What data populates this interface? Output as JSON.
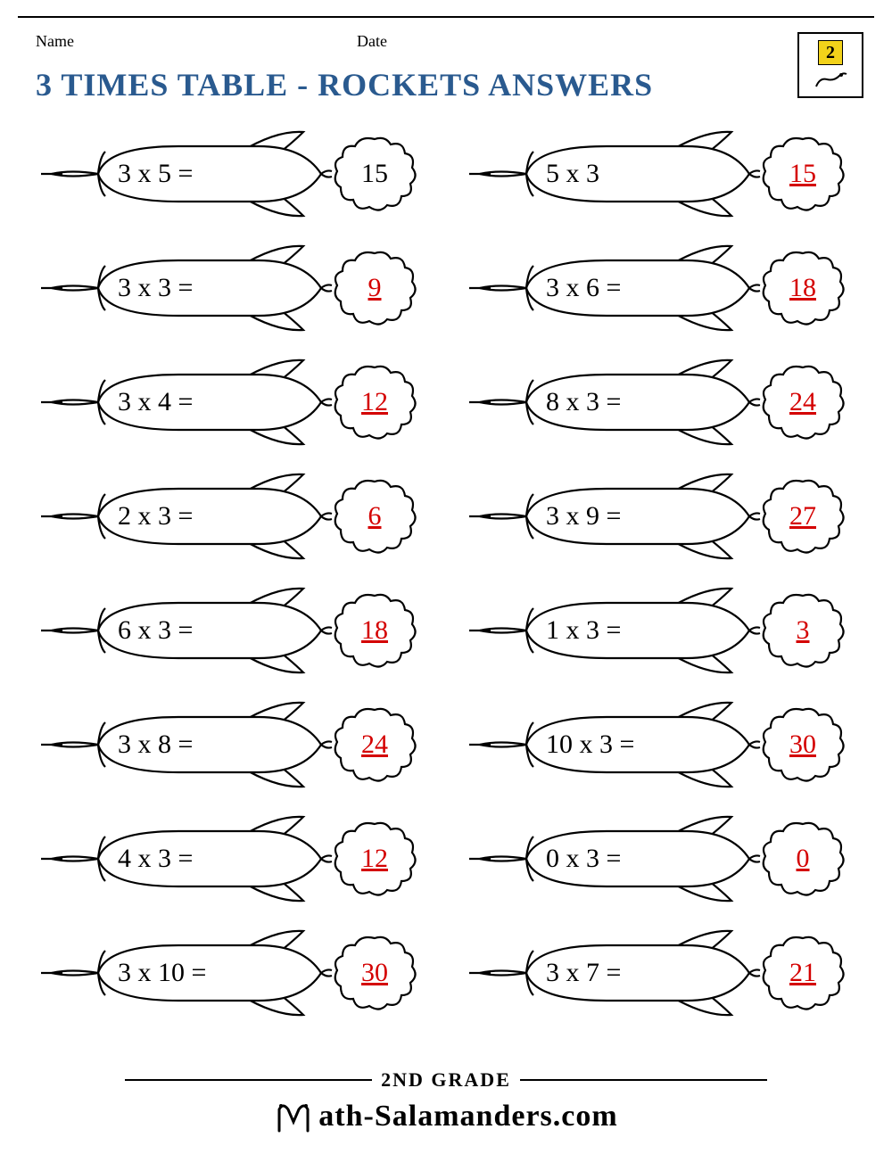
{
  "header": {
    "name_label": "Name",
    "date_label": "Date",
    "badge_number": "2"
  },
  "title": "3 TIMES TABLE - ROCKETS ANSWERS",
  "colors": {
    "title": "#2a5a8f",
    "answer_red": "#d40000",
    "answer_black": "#000000",
    "stroke": "#000000",
    "background": "#ffffff",
    "badge_yellow": "#f2d21a"
  },
  "typography": {
    "title_fontsize": 36,
    "equation_fontsize": 30,
    "answer_fontsize": 30,
    "header_fontsize": 18
  },
  "layout": {
    "columns": 2,
    "rows": 8,
    "row_gap": 18,
    "col_gap": 40
  },
  "problems": [
    {
      "equation": "3 x 5 =",
      "answer": "15",
      "answer_color": "black"
    },
    {
      "equation": "5 x 3",
      "answer": "15",
      "answer_color": "red"
    },
    {
      "equation": "3 x 3 =",
      "answer": "9",
      "answer_color": "red"
    },
    {
      "equation": "3 x 6 =",
      "answer": "18",
      "answer_color": "red"
    },
    {
      "equation": "3 x 4 =",
      "answer": "12",
      "answer_color": "red"
    },
    {
      "equation": "8 x 3 =",
      "answer": "24",
      "answer_color": "red"
    },
    {
      "equation": "2 x 3 =",
      "answer": "6",
      "answer_color": "red"
    },
    {
      "equation": "3 x 9 =",
      "answer": "27",
      "answer_color": "red"
    },
    {
      "equation": "6 x 3 =",
      "answer": "18",
      "answer_color": "red"
    },
    {
      "equation": "1 x 3 =",
      "answer": "3",
      "answer_color": "red"
    },
    {
      "equation": "3 x 8 =",
      "answer": "24",
      "answer_color": "red"
    },
    {
      "equation": "10 x 3 =",
      "answer": "30",
      "answer_color": "red"
    },
    {
      "equation": "4 x 3 =",
      "answer": "12",
      "answer_color": "red"
    },
    {
      "equation": "0 x 3 =",
      "answer": "0",
      "answer_color": "red"
    },
    {
      "equation": "3 x 10 =",
      "answer": "30",
      "answer_color": "red"
    },
    {
      "equation": "3 x 7 =",
      "answer": "21",
      "answer_color": "red"
    }
  ],
  "footer": {
    "grade_label": "2ND GRADE",
    "brand_text": "ath-Salamanders.com"
  }
}
